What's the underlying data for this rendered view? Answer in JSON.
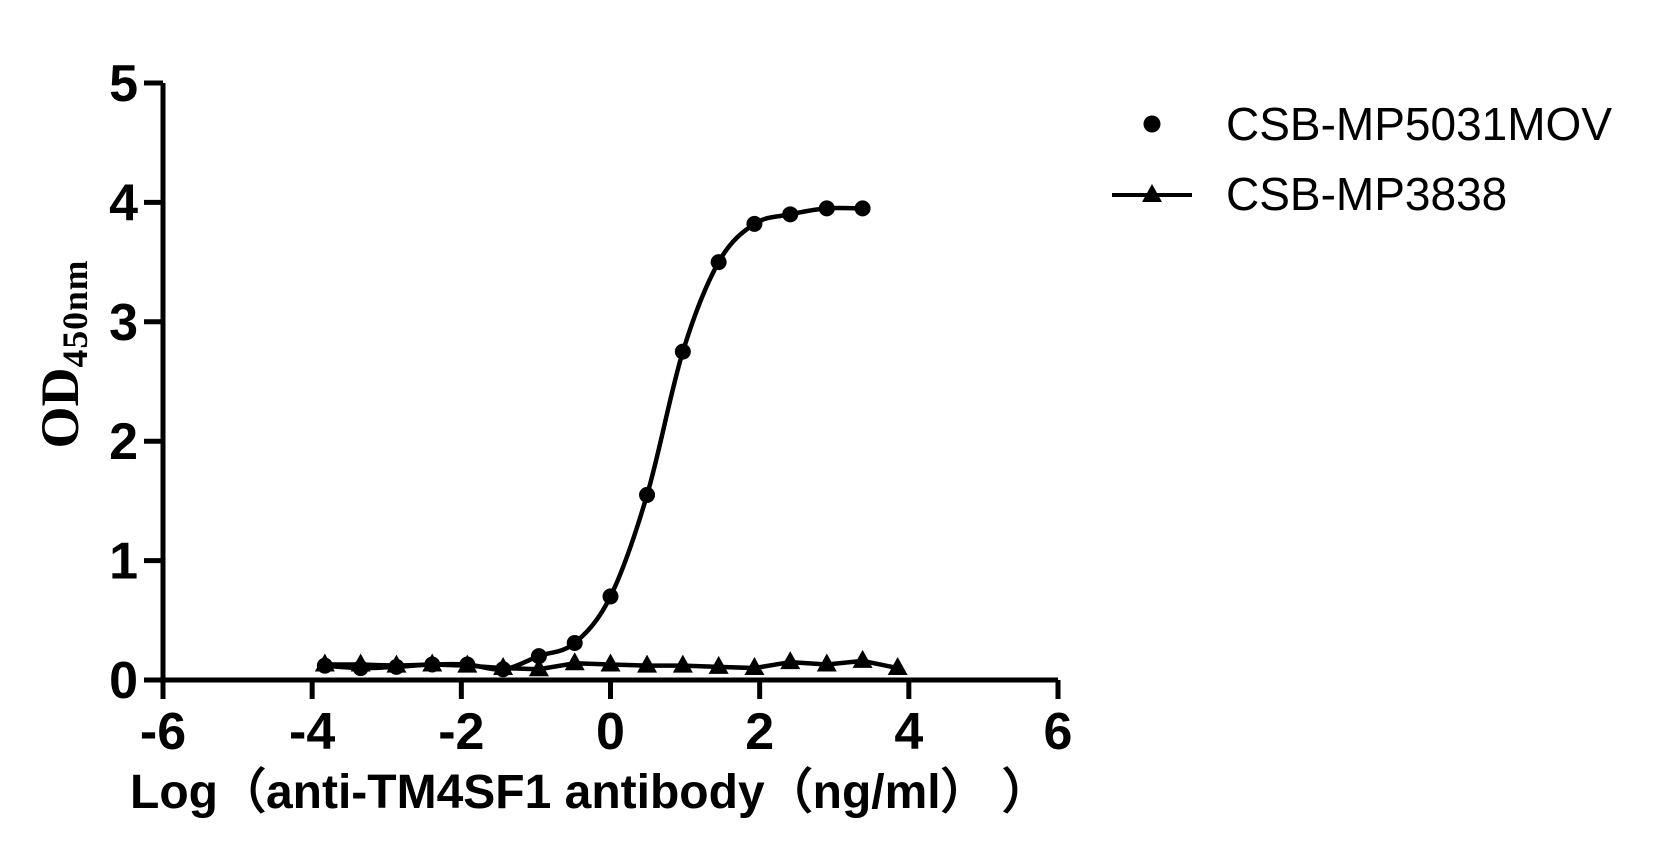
{
  "figure": {
    "background": "#ffffff",
    "ink_color": "#000000"
  },
  "chart_data": {
    "type": "line",
    "title": "",
    "xlabel": "Log（anti-TM4SF1 antibody（ng/ml） ）",
    "ylabel": {
      "base": "OD",
      "sub": "450nm"
    },
    "xlim": [
      -6,
      6
    ],
    "ylim": [
      0,
      5
    ],
    "xticks": [
      -6,
      -4,
      -2,
      0,
      2,
      4,
      6
    ],
    "yticks": [
      0,
      1,
      2,
      3,
      4,
      5
    ],
    "grid": false,
    "legend_position": "right-top",
    "series": [
      {
        "name": "CSB-MP5031MOV",
        "marker": "circle",
        "line_style": "smooth",
        "color": "#000000",
        "x": [
          -3.83,
          -3.35,
          -2.87,
          -2.39,
          -1.92,
          -1.44,
          -0.96,
          -0.48,
          0.0,
          0.49,
          0.97,
          1.45,
          1.93,
          2.41,
          2.9,
          3.38
        ],
        "y": [
          0.12,
          0.1,
          0.11,
          0.13,
          0.13,
          0.09,
          0.2,
          0.31,
          0.7,
          1.55,
          2.75,
          3.5,
          3.82,
          3.9,
          3.95,
          3.95
        ]
      },
      {
        "name": "CSB-MP3838",
        "marker": "triangle",
        "line_style": "straight",
        "color": "#000000",
        "x": [
          -3.83,
          -3.35,
          -2.87,
          -2.39,
          -1.92,
          -1.44,
          -0.96,
          -0.48,
          0.0,
          0.49,
          0.97,
          1.45,
          1.93,
          2.41,
          2.9,
          3.38,
          3.85
        ],
        "y": [
          0.13,
          0.13,
          0.12,
          0.13,
          0.12,
          0.1,
          0.09,
          0.14,
          0.13,
          0.12,
          0.12,
          0.11,
          0.1,
          0.15,
          0.13,
          0.16,
          0.1
        ]
      }
    ]
  }
}
